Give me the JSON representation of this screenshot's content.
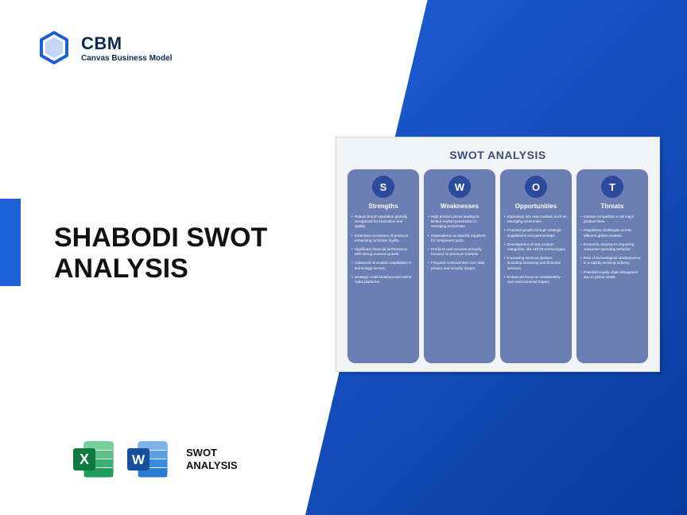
{
  "brand": {
    "name": "CBM",
    "subtitle": "Canvas Business Model",
    "logo_color": "#1d5fd6"
  },
  "accent_color": "#1d5fd6",
  "title": "SHABODI SWOT ANALYSIS",
  "file_label_line1": "SWOT",
  "file_label_line2": "ANALYSIS",
  "excel_icon": {
    "bg": "#1e9e58",
    "bg_dark": "#0f7a3f",
    "letter": "X"
  },
  "word_icon": {
    "bg": "#2b7cd3",
    "bg_dark": "#164f9c",
    "letter": "W"
  },
  "swot": {
    "title": "SWOT ANALYSIS",
    "title_color": "#3a4d7a",
    "panel_bg": "#f2f3f5",
    "col_bg": "#6b7fb5",
    "circle_bg": "#2d4b9e",
    "columns": [
      {
        "letter": "S",
        "heading": "Strengths",
        "items": [
          "Robust brand reputation globally recognized for innovation and quality.",
          "Extensive ecosystem of products enhancing customer loyalty.",
          "Significant financial performance with strong revenue growth.",
          "Advanced innovation capabilities in technology sectors.",
          "Strategic retail locations and online sales platforms."
        ]
      },
      {
        "letter": "W",
        "heading": "Weaknesses",
        "items": [
          "High product prices leading to limited market penetration in emerging economies.",
          "Dependence on specific suppliers for component parts.",
          "Products and services primarily focused on premium markets.",
          "Frequent controversies over data privacy and security issues."
        ]
      },
      {
        "letter": "O",
        "heading": "Opportunities",
        "items": [
          "Expansion into new markets such as emerging economies.",
          "Potential growth through strategic acquisitions and partnerships.",
          "Development of new product categories, like AR/VR technologies.",
          "Increasing services division, including streaming and financial services.",
          "Enhanced focus on sustainability and environmental impact."
        ]
      },
      {
        "letter": "T",
        "heading": "Threats",
        "items": [
          "Intense competition in all major product lines.",
          "Regulatory challenges across different global markets.",
          "Economic downturns impacting consumer spending behavior.",
          "Risk of technological obsolescence in a rapidly evolving industry.",
          "Potential supply chain disruptions due to global crises."
        ]
      }
    ]
  }
}
